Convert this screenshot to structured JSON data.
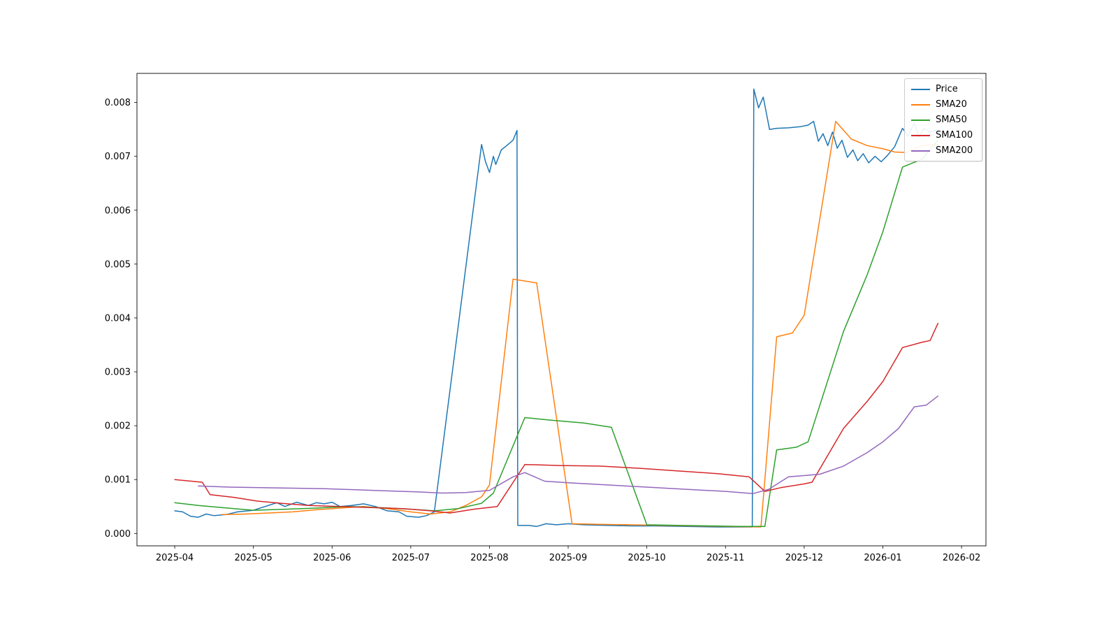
{
  "figure": {
    "background_color": "#ffffff",
    "title": ""
  },
  "legend": {
    "position": "upper right",
    "entries": [
      "Price",
      "SMA20",
      "SMA50",
      "SMA100",
      "SMA200"
    ]
  },
  "chart_data": {
    "type": "line",
    "title": "",
    "xlabel": "",
    "ylabel": "",
    "x_unit": "months since 2025-04",
    "xlim": [
      -0.48,
      10.31
    ],
    "ylim": [
      -0.00023,
      0.00854
    ],
    "grid": false,
    "legend_position": "upper right",
    "x_ticks": [
      {
        "t": 0,
        "label": "2025-04"
      },
      {
        "t": 1,
        "label": "2025-05"
      },
      {
        "t": 2,
        "label": "2025-06"
      },
      {
        "t": 3,
        "label": "2025-07"
      },
      {
        "t": 4,
        "label": "2025-08"
      },
      {
        "t": 5,
        "label": "2025-09"
      },
      {
        "t": 6,
        "label": "2025-10"
      },
      {
        "t": 7,
        "label": "2025-11"
      },
      {
        "t": 8,
        "label": "2025-12"
      },
      {
        "t": 9,
        "label": "2026-01"
      },
      {
        "t": 10,
        "label": "2026-02"
      }
    ],
    "y_ticks": [
      {
        "v": 0.0,
        "label": "0.000"
      },
      {
        "v": 0.001,
        "label": "0.001"
      },
      {
        "v": 0.002,
        "label": "0.002"
      },
      {
        "v": 0.003,
        "label": "0.003"
      },
      {
        "v": 0.004,
        "label": "0.004"
      },
      {
        "v": 0.005,
        "label": "0.005"
      },
      {
        "v": 0.006,
        "label": "0.006"
      },
      {
        "v": 0.007,
        "label": "0.007"
      },
      {
        "v": 0.008,
        "label": "0.008"
      }
    ],
    "series": [
      {
        "name": "Price",
        "color": "#1f77b4",
        "points": [
          [
            0.0,
            0.00042
          ],
          [
            0.1,
            0.0004
          ],
          [
            0.2,
            0.00032
          ],
          [
            0.3,
            0.0003
          ],
          [
            0.4,
            0.00036
          ],
          [
            0.5,
            0.00033
          ],
          [
            0.65,
            0.00035
          ],
          [
            0.8,
            0.0004
          ],
          [
            1.0,
            0.00043
          ],
          [
            1.15,
            0.0005
          ],
          [
            1.3,
            0.00057
          ],
          [
            1.4,
            0.0005
          ],
          [
            1.55,
            0.00058
          ],
          [
            1.7,
            0.00052
          ],
          [
            1.8,
            0.00057
          ],
          [
            1.9,
            0.00055
          ],
          [
            2.0,
            0.00058
          ],
          [
            2.1,
            0.0005
          ],
          [
            2.25,
            0.00052
          ],
          [
            2.4,
            0.00055
          ],
          [
            2.55,
            0.0005
          ],
          [
            2.7,
            0.00042
          ],
          [
            2.85,
            0.0004
          ],
          [
            2.95,
            0.00032
          ],
          [
            3.1,
            0.0003
          ],
          [
            3.2,
            0.00033
          ],
          [
            3.3,
            0.0004
          ],
          [
            3.9,
            0.00722
          ],
          [
            3.95,
            0.0069
          ],
          [
            4.0,
            0.0067
          ],
          [
            4.05,
            0.007
          ],
          [
            4.08,
            0.00685
          ],
          [
            4.15,
            0.00712
          ],
          [
            4.22,
            0.0072
          ],
          [
            4.3,
            0.0073
          ],
          [
            4.35,
            0.00748
          ],
          [
            4.36,
            0.00015
          ],
          [
            4.5,
            0.00015
          ],
          [
            4.6,
            0.00013
          ],
          [
            4.72,
            0.00018
          ],
          [
            4.85,
            0.00016
          ],
          [
            5.0,
            0.00018
          ],
          [
            5.2,
            0.00016
          ],
          [
            5.5,
            0.00015
          ],
          [
            5.8,
            0.00014
          ],
          [
            6.1,
            0.00014
          ],
          [
            6.5,
            0.00013
          ],
          [
            6.9,
            0.00012
          ],
          [
            7.2,
            0.00012
          ],
          [
            7.34,
            0.00012
          ],
          [
            7.36,
            0.00825
          ],
          [
            7.42,
            0.0079
          ],
          [
            7.48,
            0.0081
          ],
          [
            7.52,
            0.0078
          ],
          [
            7.56,
            0.0075
          ],
          [
            7.65,
            0.00752
          ],
          [
            7.8,
            0.00753
          ],
          [
            7.95,
            0.00755
          ],
          [
            8.05,
            0.00758
          ],
          [
            8.12,
            0.00765
          ],
          [
            8.18,
            0.00728
          ],
          [
            8.24,
            0.00742
          ],
          [
            8.3,
            0.0072
          ],
          [
            8.36,
            0.00745
          ],
          [
            8.42,
            0.00715
          ],
          [
            8.48,
            0.0073
          ],
          [
            8.55,
            0.00698
          ],
          [
            8.62,
            0.00712
          ],
          [
            8.68,
            0.00692
          ],
          [
            8.75,
            0.00705
          ],
          [
            8.82,
            0.00688
          ],
          [
            8.9,
            0.007
          ],
          [
            8.98,
            0.0069
          ],
          [
            9.06,
            0.00702
          ],
          [
            9.15,
            0.00718
          ],
          [
            9.25,
            0.00752
          ],
          [
            9.32,
            0.00738
          ],
          [
            9.4,
            0.00762
          ],
          [
            9.46,
            0.00735
          ],
          [
            9.52,
            0.00752
          ],
          [
            9.6,
            0.00745
          ],
          [
            9.7,
            0.0075
          ]
        ]
      },
      {
        "name": "SMA20",
        "color": "#ff7f0e",
        "points": [
          [
            0.6,
            0.00035
          ],
          [
            0.9,
            0.00036
          ],
          [
            1.2,
            0.00038
          ],
          [
            1.5,
            0.0004
          ],
          [
            1.8,
            0.00044
          ],
          [
            2.1,
            0.00047
          ],
          [
            2.4,
            0.0005
          ],
          [
            2.7,
            0.00046
          ],
          [
            3.0,
            0.0004
          ],
          [
            3.25,
            0.00036
          ],
          [
            3.5,
            0.0004
          ],
          [
            3.7,
            0.00052
          ],
          [
            3.9,
            0.00068
          ],
          [
            4.0,
            0.0009
          ],
          [
            4.3,
            0.00472
          ],
          [
            4.6,
            0.00465
          ],
          [
            5.05,
            0.00018
          ],
          [
            5.4,
            0.00017
          ],
          [
            5.8,
            0.00016
          ],
          [
            6.2,
            0.00015
          ],
          [
            6.6,
            0.00014
          ],
          [
            7.0,
            0.00013
          ],
          [
            7.45,
            0.00012
          ],
          [
            7.65,
            0.00365
          ],
          [
            7.85,
            0.00372
          ],
          [
            8.0,
            0.00405
          ],
          [
            8.4,
            0.00765
          ],
          [
            8.6,
            0.00732
          ],
          [
            8.8,
            0.0072
          ],
          [
            9.0,
            0.00714
          ],
          [
            9.15,
            0.00708
          ],
          [
            9.3,
            0.00707
          ],
          [
            9.5,
            0.0072
          ],
          [
            9.7,
            0.00722
          ]
        ]
      },
      {
        "name": "SMA50",
        "color": "#2ca02c",
        "points": [
          [
            0.0,
            0.00057
          ],
          [
            0.3,
            0.00052
          ],
          [
            0.6,
            0.00048
          ],
          [
            1.0,
            0.00043
          ],
          [
            1.4,
            0.00045
          ],
          [
            1.8,
            0.00047
          ],
          [
            2.2,
            0.0005
          ],
          [
            2.6,
            0.00048
          ],
          [
            3.0,
            0.00045
          ],
          [
            3.3,
            0.00042
          ],
          [
            3.6,
            0.00046
          ],
          [
            3.9,
            0.00056
          ],
          [
            4.05,
            0.00075
          ],
          [
            4.45,
            0.00215
          ],
          [
            4.8,
            0.0021
          ],
          [
            5.2,
            0.00205
          ],
          [
            5.55,
            0.00197
          ],
          [
            6.0,
            0.00016
          ],
          [
            6.4,
            0.00015
          ],
          [
            6.8,
            0.00014
          ],
          [
            7.2,
            0.00013
          ],
          [
            7.5,
            0.00013
          ],
          [
            7.65,
            0.00155
          ],
          [
            7.9,
            0.0016
          ],
          [
            8.05,
            0.0017
          ],
          [
            8.5,
            0.00375
          ],
          [
            8.8,
            0.0048
          ],
          [
            9.0,
            0.0056
          ],
          [
            9.25,
            0.0068
          ],
          [
            9.5,
            0.00695
          ],
          [
            9.7,
            0.0073
          ]
        ]
      },
      {
        "name": "SMA100",
        "color": "#d62728",
        "points": [
          [
            0.0,
            0.001
          ],
          [
            0.35,
            0.00095
          ],
          [
            0.45,
            0.00072
          ],
          [
            0.75,
            0.00067
          ],
          [
            1.05,
            0.0006
          ],
          [
            1.35,
            0.00056
          ],
          [
            1.7,
            0.00052
          ],
          [
            2.1,
            0.0005
          ],
          [
            2.5,
            0.00048
          ],
          [
            2.9,
            0.00046
          ],
          [
            3.25,
            0.00042
          ],
          [
            3.5,
            0.00038
          ],
          [
            3.8,
            0.00045
          ],
          [
            4.1,
            0.0005
          ],
          [
            4.45,
            0.00128
          ],
          [
            4.9,
            0.00126
          ],
          [
            5.4,
            0.00125
          ],
          [
            5.9,
            0.00121
          ],
          [
            6.4,
            0.00116
          ],
          [
            6.9,
            0.00111
          ],
          [
            7.3,
            0.00105
          ],
          [
            7.5,
            0.00078
          ],
          [
            7.7,
            0.00085
          ],
          [
            8.0,
            0.00092
          ],
          [
            8.1,
            0.00095
          ],
          [
            8.5,
            0.00195
          ],
          [
            8.8,
            0.00245
          ],
          [
            9.0,
            0.00282
          ],
          [
            9.25,
            0.00345
          ],
          [
            9.5,
            0.00355
          ],
          [
            9.6,
            0.00358
          ],
          [
            9.7,
            0.0039
          ]
        ]
      },
      {
        "name": "SMA200",
        "color": "#9467bd",
        "points": [
          [
            0.3,
            0.00088
          ],
          [
            0.7,
            0.00086
          ],
          [
            1.1,
            0.00085
          ],
          [
            1.5,
            0.00084
          ],
          [
            1.9,
            0.00083
          ],
          [
            2.3,
            0.00081
          ],
          [
            2.7,
            0.00079
          ],
          [
            3.1,
            0.00077
          ],
          [
            3.4,
            0.00075
          ],
          [
            3.7,
            0.00076
          ],
          [
            4.0,
            0.0008
          ],
          [
            4.3,
            0.00105
          ],
          [
            4.45,
            0.00113
          ],
          [
            4.7,
            0.00097
          ],
          [
            5.0,
            0.00094
          ],
          [
            5.5,
            0.0009
          ],
          [
            6.0,
            0.00086
          ],
          [
            6.5,
            0.00082
          ],
          [
            7.0,
            0.00078
          ],
          [
            7.35,
            0.00074
          ],
          [
            7.55,
            0.00082
          ],
          [
            7.8,
            0.00105
          ],
          [
            8.2,
            0.0011
          ],
          [
            8.5,
            0.00125
          ],
          [
            8.8,
            0.0015
          ],
          [
            9.0,
            0.0017
          ],
          [
            9.2,
            0.00195
          ],
          [
            9.4,
            0.00235
          ],
          [
            9.55,
            0.00238
          ],
          [
            9.7,
            0.00255
          ]
        ]
      }
    ]
  }
}
